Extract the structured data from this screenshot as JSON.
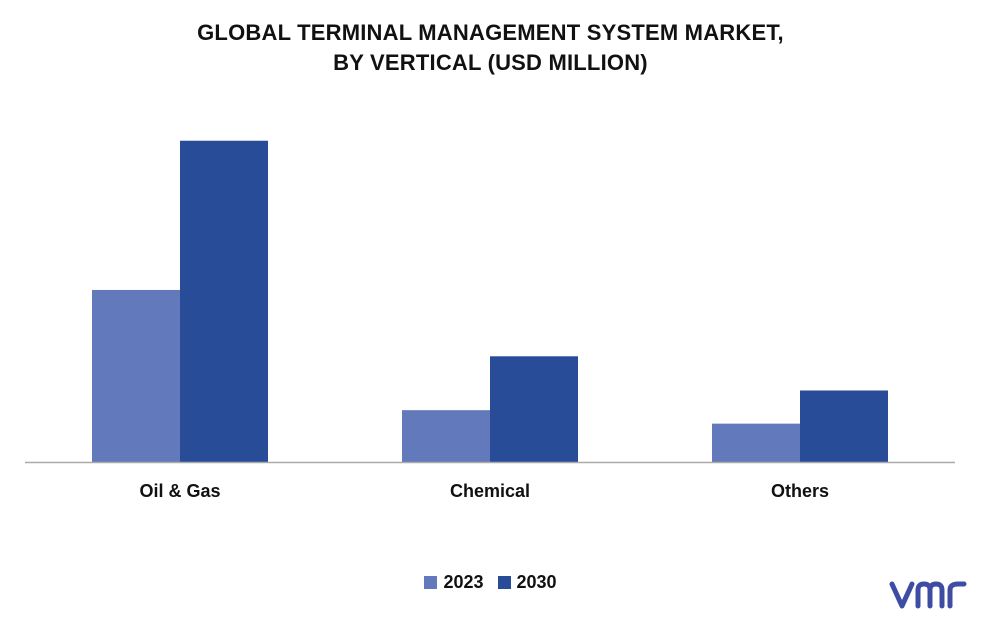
{
  "title_line1": "GLOBAL TERMINAL MANAGEMENT SYSTEM MARKET,",
  "title_line2": "BY VERTICAL (USD MILLION)",
  "colors": {
    "s2023": "#6279BB",
    "s2030": "#284C97",
    "axis": "#AAAAAA",
    "logo": "#3E4DA3"
  },
  "chart_data": {
    "type": "bar",
    "title": "GLOBAL TERMINAL MANAGEMENT SYSTEM MARKET, BY VERTICAL (USD MILLION)",
    "categories": [
      "Oil & Gas",
      "Chemical",
      "Others"
    ],
    "series": [
      {
        "name": "2023",
        "values": [
          166,
          50,
          37
        ]
      },
      {
        "name": "2030",
        "values": [
          310,
          102,
          69
        ]
      }
    ],
    "ylim": [
      0,
      330
    ],
    "grid": false,
    "legend_position": "bottom"
  }
}
